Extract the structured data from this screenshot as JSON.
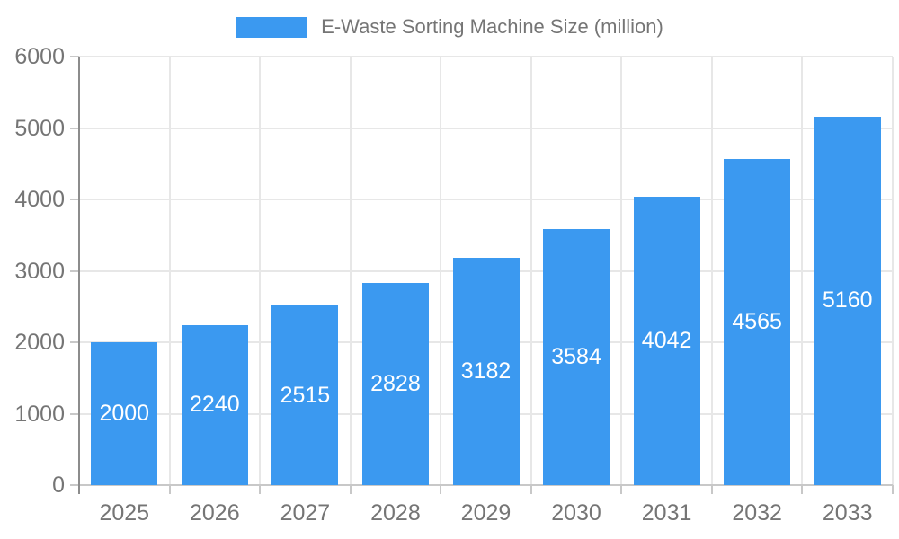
{
  "legend": {
    "label": "E-Waste Sorting Machine Size (million)"
  },
  "colors": {
    "bar": "#3B99F0",
    "bar_label": "#FFFFFF",
    "grid_line": "#E7E7E7",
    "y_axis_line": "#8C8C8C",
    "x_axis_line": "#C8C8C8",
    "tick_mark": "#C8C8C8",
    "tick_label": "#757575",
    "legend_text": "#757575",
    "background": "#FFFFFF"
  },
  "chart_data": {
    "type": "bar",
    "title": "E-Waste Sorting Machine Size (million)",
    "series_name": "E-Waste Sorting Machine Size (million)",
    "categories": [
      "2025",
      "2026",
      "2027",
      "2028",
      "2029",
      "2030",
      "2031",
      "2032",
      "2033"
    ],
    "values": [
      2000,
      2240,
      2515,
      2828,
      3182,
      3584,
      4042,
      4565,
      5160
    ],
    "xlabel": "",
    "ylabel": "",
    "ylim": [
      0,
      6000
    ],
    "yticks": [
      0,
      1000,
      2000,
      3000,
      4000,
      5000,
      6000
    ],
    "grid": "on",
    "legend_position": "top-center",
    "bar_label_position": "inside-center"
  }
}
